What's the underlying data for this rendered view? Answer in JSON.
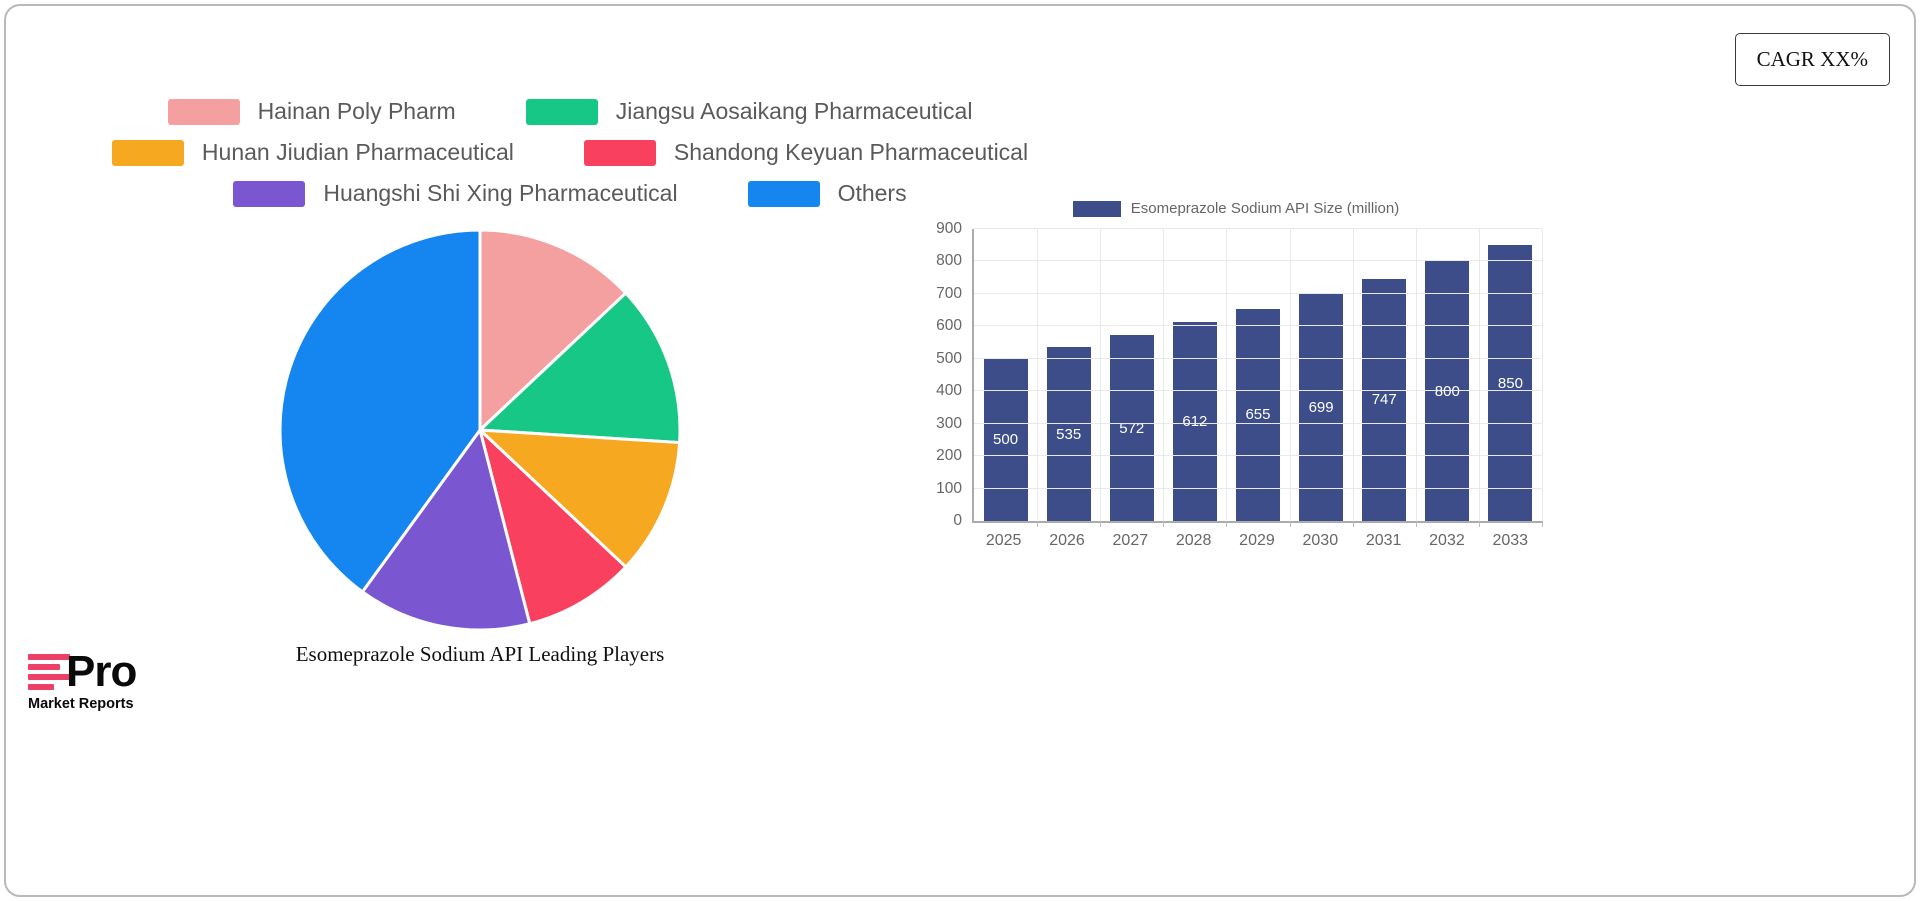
{
  "cagr": {
    "label": "CAGR XX%"
  },
  "logo": {
    "pro": "Pro",
    "sub": "Market Reports"
  },
  "chart_data": [
    {
      "type": "pie",
      "title": "Esomeprazole Sodium API Leading Players",
      "labels": [
        "Hainan Poly Pharm",
        "Jiangsu Aosaikang Pharmaceutical",
        "Hunan Jiudian Pharmaceutical",
        "Shandong Keyuan Pharmaceutical",
        "Huangshi Shi Xing Pharmaceutical",
        "Others"
      ],
      "values": [
        13,
        13,
        11,
        9,
        14,
        40
      ],
      "colors": [
        "#f5a0a0",
        "#17c786",
        "#f6a821",
        "#f9405f",
        "#7a57d1",
        "#1586f0"
      ],
      "legend_position": "top",
      "slice_border_color": "#ffffff"
    },
    {
      "type": "bar",
      "legend_label": "Esomeprazole Sodium API Size (million)",
      "categories": [
        "2025",
        "2026",
        "2027",
        "2028",
        "2029",
        "2030",
        "2031",
        "2032",
        "2033"
      ],
      "values": [
        500,
        535,
        572,
        612,
        655,
        699,
        747,
        800,
        850
      ],
      "ylim": [
        0,
        900
      ],
      "yticks": [
        0,
        100,
        200,
        300,
        400,
        500,
        600,
        700,
        800,
        900
      ],
      "color": "#3d4d8a",
      "value_label_color": "#ffffff",
      "grid": true,
      "legend_position": "top"
    }
  ],
  "logo_bar_color": "#ec4067"
}
